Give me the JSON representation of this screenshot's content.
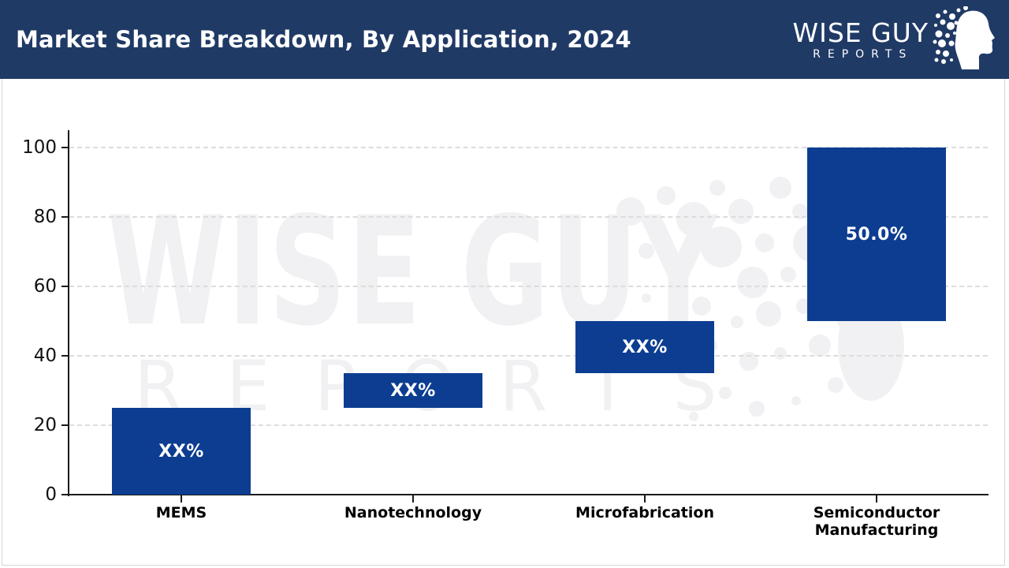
{
  "header": {
    "title": "Market Share Breakdown, By Application, 2024",
    "logo": {
      "line1": "WISE GUY",
      "line2": "REPORTS"
    }
  },
  "watermark": {
    "line1": "WISE GUY",
    "line2": "REPORTS"
  },
  "chart_data": {
    "type": "bar",
    "subtype": "floating-waterfall",
    "title": "Market Share Breakdown, By Application, 2024",
    "categories": [
      "MEMS",
      "Nanotechnology",
      "Microfabrication",
      "Semiconductor Manufacturing"
    ],
    "series": [
      {
        "name": "MEMS",
        "start": 0,
        "end": 25,
        "label": "XX%"
      },
      {
        "name": "Nanotechnology",
        "start": 25,
        "end": 35,
        "label": "XX%"
      },
      {
        "name": "Microfabrication",
        "start": 35,
        "end": 50,
        "label": "XX%"
      },
      {
        "name": "Semiconductor Manufacturing",
        "start": 50,
        "end": 100,
        "label": "50.0%"
      }
    ],
    "xlabel": "",
    "ylabel": "",
    "ylim": [
      0,
      105
    ],
    "yticks": [
      0,
      20,
      40,
      60,
      80,
      100
    ],
    "grid": "horizontal dashed",
    "legend": "none",
    "colors": {
      "bar": "#0c3d91",
      "bar_label": "#ffffff",
      "header_bg": "#203a66",
      "axis": "#1a1a1a",
      "gridline": "#dcdcdc",
      "watermark": "#f1f1f3"
    }
  }
}
